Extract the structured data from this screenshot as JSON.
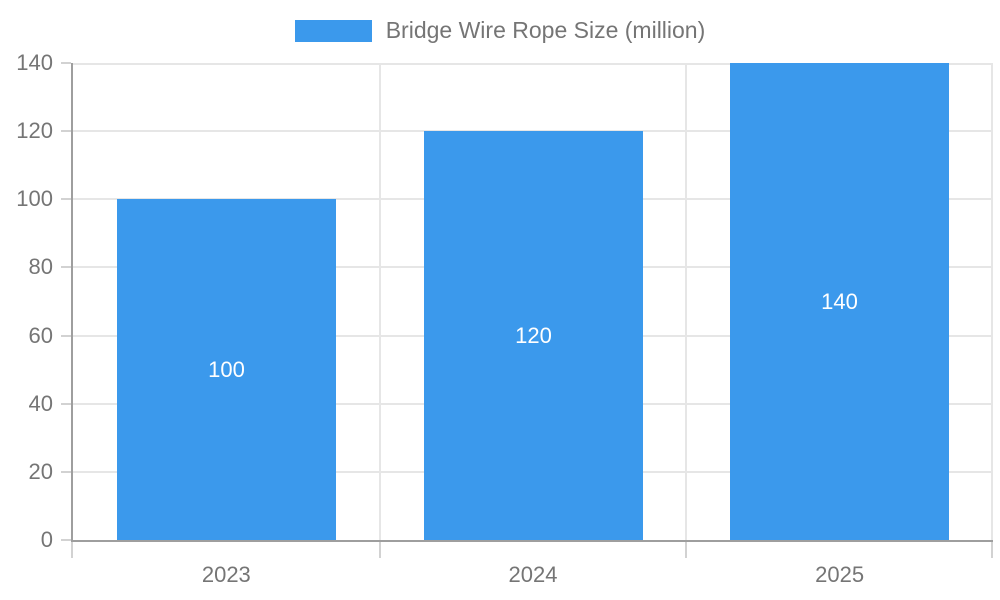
{
  "chart_data": {
    "type": "bar",
    "title": "",
    "xlabel": "",
    "ylabel": "",
    "categories": [
      "2023",
      "2024",
      "2025"
    ],
    "series": [
      {
        "name": "Bridge Wire Rope Size (million)",
        "values": [
          100,
          120,
          140
        ]
      }
    ],
    "y_ticks": [
      0,
      20,
      40,
      60,
      80,
      100,
      120,
      140
    ],
    "ylim": [
      0,
      140
    ],
    "grid": true,
    "legend_position": "top",
    "bar_value_labels": "inside-center"
  },
  "colors": {
    "bar": "#3B99EC",
    "bar_label": "#FFFFFF",
    "axis_text": "#757575",
    "grid_line": "#E6E6E6",
    "axis_line": "#9E9E9E",
    "tick_mark": "#D2D2D2",
    "background": "#FFFFFF"
  }
}
